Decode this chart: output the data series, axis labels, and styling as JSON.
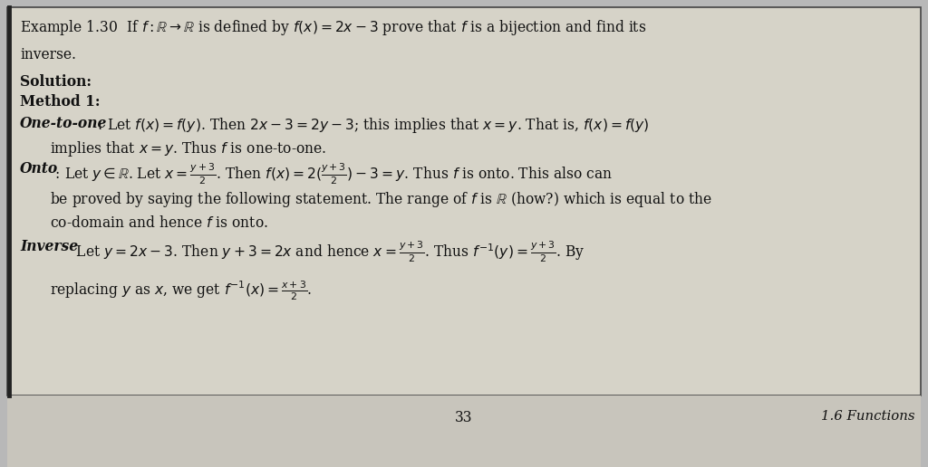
{
  "bg_color": "#b8b8b8",
  "box_color": "#d6d3c8",
  "box_edge_color": "#444444",
  "footer_color": "#c8c5bc",
  "text_color": "#111111",
  "page_number": "33",
  "section_label": "1.6 Functions",
  "title_line1": "Example 1.30  If $f : \\mathbb{R} \\rightarrow \\mathbb{R}$ is defined by $f(x) = 2x - 3$ prove that $f$ is a bijection and find its",
  "title_line2": "inverse.",
  "solution_label": "Solution:",
  "method_label": "Method 1:",
  "one_to_one_label": "One-to-one",
  "one_to_one_text1": " : Let $f(x) = f(y)$. Then $2x - 3 = 2y - 3$; this implies that $x = y$. That is, $f(x) = f(y)$",
  "one_to_one_text2": "implies that $x = y$. Thus $f$ is one-to-one.",
  "onto_label": "Onto",
  "onto_text1": " : Let $y \\in \\mathbb{R}$. Let $x = \\frac{y+3}{2}$. Then $f(x) = 2(\\frac{y+3}{2}) - 3 = y$. Thus $f$ is onto. This also can",
  "onto_text2": "be proved by saying the following statement. The range of $f$ is $\\mathbb{R}$ (how?) which is equal to the",
  "onto_text3": "co-domain and hence $f$ is onto.",
  "inverse_label": "Inverse",
  "inverse_text1": " Let $y = 2x - 3$. Then $y + 3 = 2x$ and hence $x = \\frac{y+3}{2}$. Thus $f^{-1}(y) = \\frac{y+3}{2}$. By",
  "inverse_text2": "replacing $y$ as $x$, we get $f^{-1}(x) = \\frac{x+3}{2}$.",
  "left_border_color": "#222222",
  "font_size": 11.2,
  "indent": 0.058
}
